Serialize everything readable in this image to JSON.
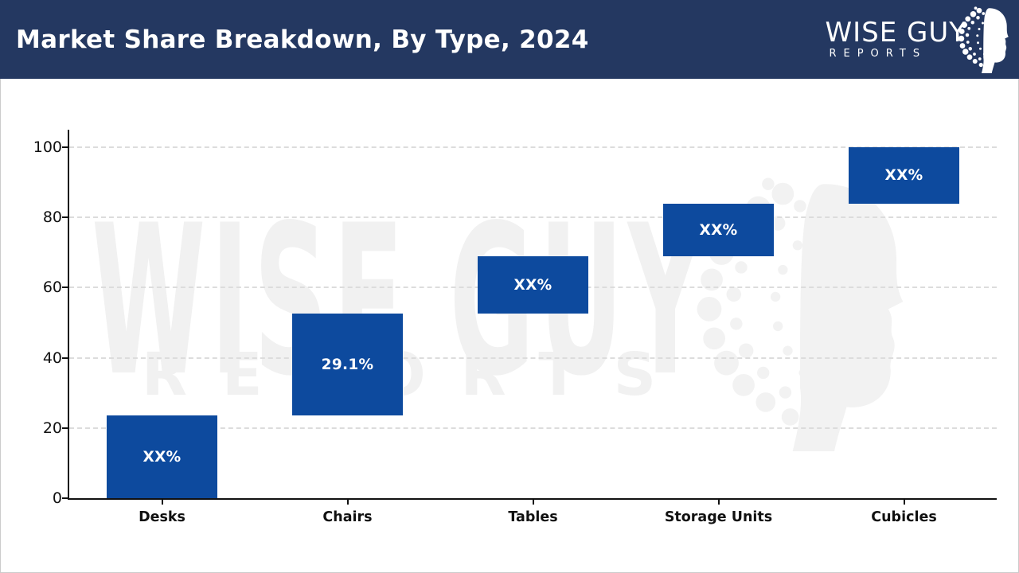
{
  "header": {
    "title": "Market Share Breakdown, By Type, 2024",
    "bg_color": "#243861",
    "logo": {
      "line1": "WISE GUY",
      "line2": "REPORTS"
    }
  },
  "watermark": {
    "line1": "WISE GUY",
    "line2": "REPORTS"
  },
  "chart_data": {
    "type": "bar",
    "subtype": "waterfall-floating-bars",
    "title": "Market Share Breakdown, By Type, 2024",
    "categories": [
      "Desks",
      "Chairs",
      "Tables",
      "Storage Units",
      "Cubicles"
    ],
    "series": [
      {
        "name": "Market Share %",
        "segments": [
          {
            "category": "Desks",
            "start": 0,
            "end": 23.5,
            "label": "XX%"
          },
          {
            "category": "Chairs",
            "start": 23.5,
            "end": 52.6,
            "label": "29.1%"
          },
          {
            "category": "Tables",
            "start": 52.6,
            "end": 68.9,
            "label": "XX%"
          },
          {
            "category": "Storage Units",
            "start": 68.9,
            "end": 83.8,
            "label": "XX%"
          },
          {
            "category": "Cubicles",
            "start": 83.8,
            "end": 100,
            "label": "XX%"
          }
        ]
      }
    ],
    "xlabel": "",
    "ylabel": "",
    "ylim": [
      0,
      105
    ],
    "yticks": [
      0,
      20,
      40,
      60,
      80,
      100
    ],
    "bar_color": "#0d4a9e",
    "grid": "horizontal-dashed",
    "legend": "none"
  }
}
